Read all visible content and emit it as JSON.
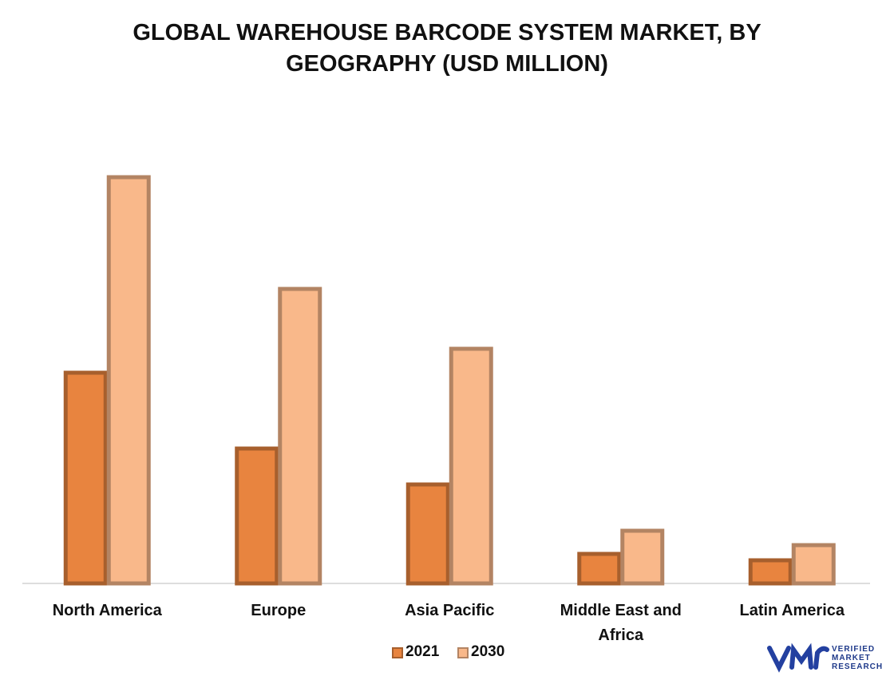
{
  "chart_data": {
    "type": "bar",
    "title": "GLOBAL WAREHOUSE BARCODE SYSTEM MARKET, BY GEOGRAPHY (USD MILLION)",
    "categories": [
      "North America",
      "Europe",
      "Asia Pacific",
      "Middle East and Africa",
      "Latin America"
    ],
    "series": [
      {
        "name": "2021",
        "color": "#e8843f",
        "values": [
          264,
          169,
          124,
          37,
          29
        ]
      },
      {
        "name": "2030",
        "color": "#f9b88a",
        "values": [
          509,
          369,
          294,
          66,
          48
        ]
      }
    ]
  },
  "logo": [
    "VERIFIED",
    "MARKET",
    "RESEARCH"
  ]
}
